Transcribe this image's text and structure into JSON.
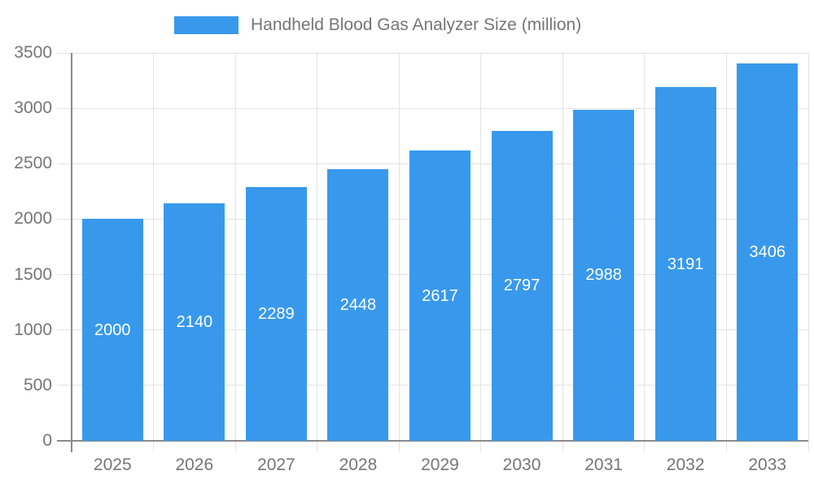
{
  "chart_data": {
    "type": "bar",
    "title": "Handheld Blood Gas Analyzer Size (million)",
    "categories": [
      "2025",
      "2026",
      "2027",
      "2028",
      "2029",
      "2030",
      "2031",
      "2032",
      "2033"
    ],
    "values": [
      2000,
      2140,
      2289,
      2448,
      2617,
      2797,
      2988,
      3191,
      3406
    ],
    "yticks": [
      0,
      500,
      1000,
      1500,
      2000,
      2500,
      3000,
      3500
    ],
    "ylim": [
      0,
      3500
    ],
    "xlabel": "",
    "ylabel": "",
    "grid": true,
    "legend_position": "top-center",
    "bar_labels": "inside-center-white"
  },
  "colors": {
    "bar": "#3899ec",
    "grid": "#e2e2e2",
    "axis": "#8a8a8a",
    "tick_text": "#757575",
    "legend_text": "#757575",
    "bar_label": "#ffffff",
    "background": "#ffffff"
  }
}
